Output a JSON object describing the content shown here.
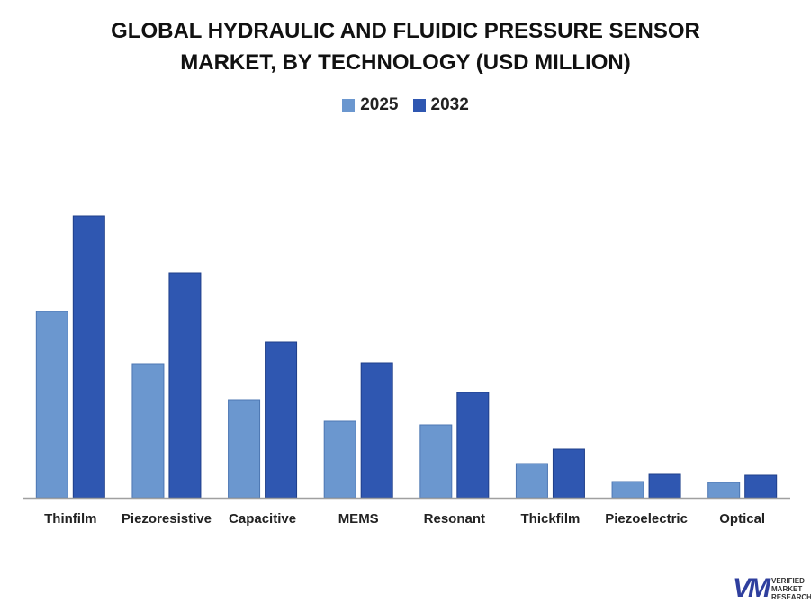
{
  "chart_data": {
    "type": "bar",
    "title": "GLOBAL HYDRAULIC AND FLUIDIC PRESSURE SENSOR MARKET, BY TECHNOLOGY (USD MILLION)",
    "title_lines": [
      "GLOBAL HYDRAULIC AND FLUIDIC PRESSURE SENSOR",
      "MARKET, BY TECHNOLOGY (USD MILLION)"
    ],
    "categories": [
      "Thinfilm",
      "Piezoresistive",
      "Capacitive",
      "MEMS",
      "Resonant",
      "Thickfilm",
      "Piezoelectric",
      "Optical"
    ],
    "series": [
      {
        "name": "2025",
        "color": "#6b97cf",
        "values": [
          207,
          149,
          109,
          85,
          81,
          38,
          18,
          17
        ]
      },
      {
        "name": "2032",
        "color": "#2f57b1",
        "values": [
          313,
          250,
          173,
          150,
          117,
          54,
          26,
          25
        ]
      }
    ],
    "xlabel": "",
    "ylabel": "",
    "ylim": [
      0,
      330
    ],
    "grid": false,
    "legend_position": "top-center",
    "y_axis_shown": false
  },
  "logo": {
    "text": "VERIFIED MARKET RESEARCH",
    "lines": [
      "VERIFIED",
      "MARKET",
      "RESEARCH"
    ]
  }
}
